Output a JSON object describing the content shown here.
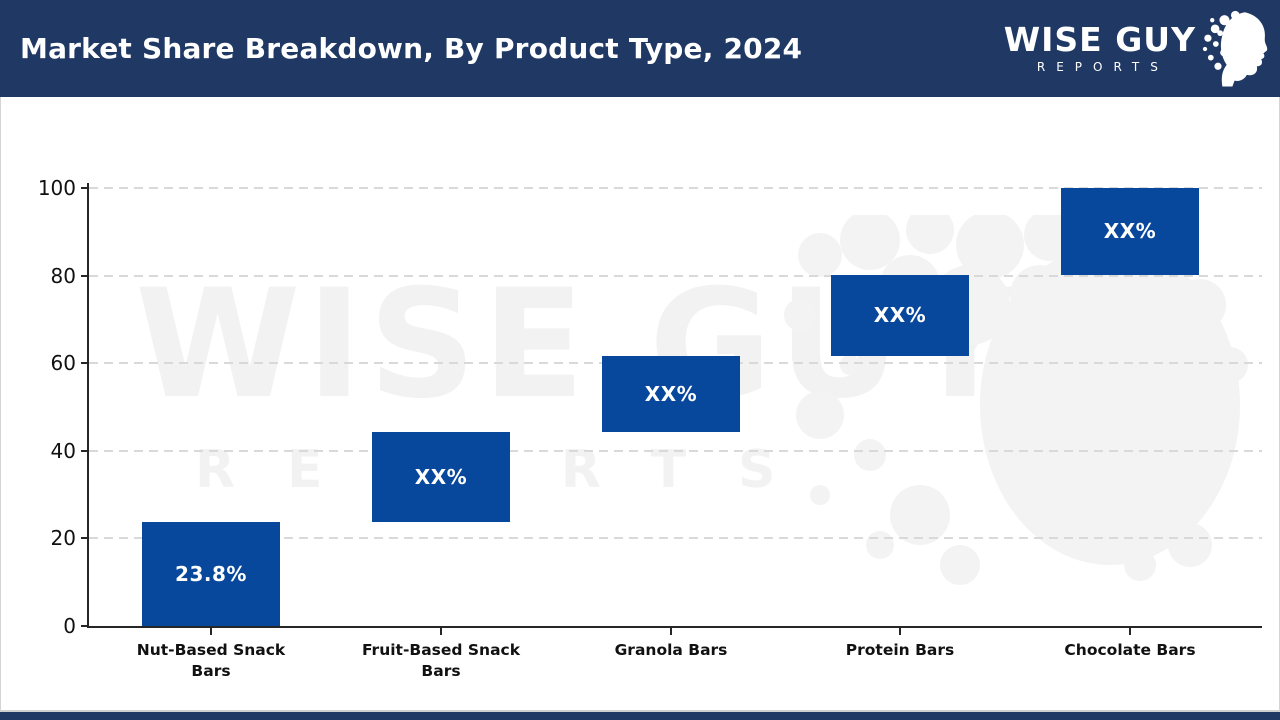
{
  "header": {
    "title": "Market Share Breakdown, By Product Type, 2024",
    "logo": {
      "name": "WISE GUY",
      "tagline": "REPORTS"
    }
  },
  "watermark": {
    "name": "WISE GUY",
    "tagline": "REPORTS"
  },
  "colors": {
    "header_bg": "#1f3864",
    "footer_bg": "#1f3864",
    "bar": "#08489c",
    "bar_label": "#ffffff",
    "grid": "#d9d9d9",
    "axis": "#262626",
    "tick_label": "#111111",
    "watermark": "#f2f2f2"
  },
  "chart_data": {
    "type": "bar",
    "variant": "waterfall-floating-bars",
    "title": "Market Share Breakdown, By Product Type, 2024",
    "categories": [
      "Nut-Based Snack Bars",
      "Fruit-Based Snack Bars",
      "Granola Bars",
      "Protein Bars",
      "Chocolate Bars"
    ],
    "segments": [
      {
        "category": "Nut-Based Snack Bars",
        "start": 0,
        "end": 23.8,
        "label": "23.8%"
      },
      {
        "category": "Fruit-Based Snack Bars",
        "start": 23.8,
        "end": 44.4,
        "label": "XX%"
      },
      {
        "category": "Granola Bars",
        "start": 44.4,
        "end": 61.6,
        "label": "XX%"
      },
      {
        "category": "Protein Bars",
        "start": 61.6,
        "end": 80.2,
        "label": "XX%"
      },
      {
        "category": "Chocolate Bars",
        "start": 80.2,
        "end": 100,
        "label": "XX%"
      }
    ],
    "xlabel": "",
    "ylabel": "",
    "ylim": [
      0,
      100
    ],
    "yticks": [
      0,
      20,
      40,
      60,
      80,
      100
    ],
    "grid": "horizontal-dashed",
    "legend": "none"
  }
}
